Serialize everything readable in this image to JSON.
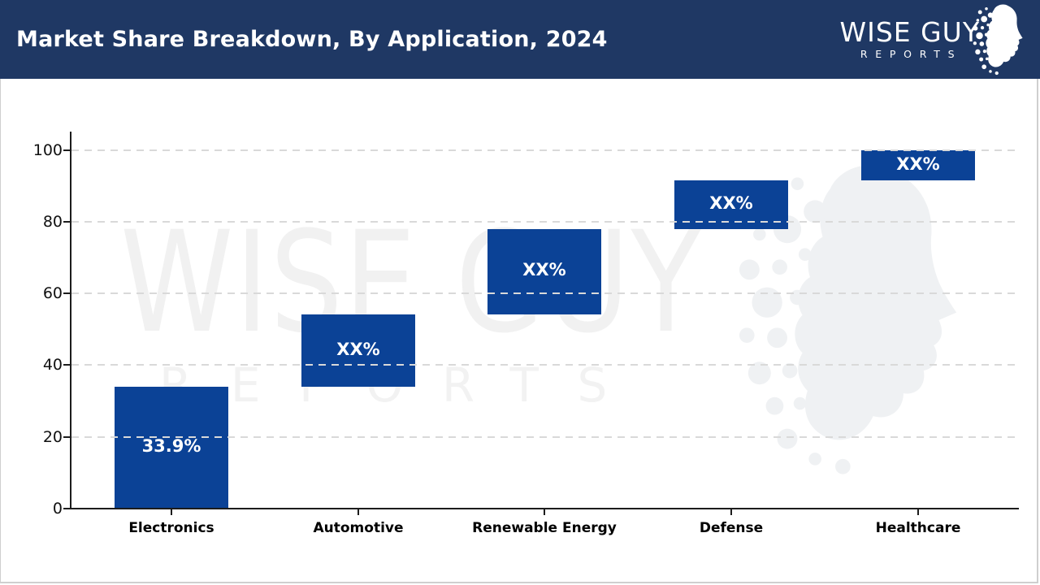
{
  "header": {
    "title": "Market Share Breakdown, By Application, 2024"
  },
  "brand": {
    "line1": "WISE GUY",
    "line2": "REPORTS"
  },
  "watermark": {
    "line1": "WISE GUY",
    "line2": "REPORTS"
  },
  "chart_data": {
    "type": "bar",
    "subtype": "floating-waterfall",
    "title": "Market Share Breakdown, By Application, 2024",
    "categories": [
      "Electronics",
      "Automotive",
      "Renewable Energy",
      "Defense",
      "Healthcare"
    ],
    "segments": [
      {
        "category": "Electronics",
        "start": 0,
        "end": 33.9,
        "label": "33.9%"
      },
      {
        "category": "Automotive",
        "start": 33.9,
        "end": 54.2,
        "label": "XX%"
      },
      {
        "category": "Renewable Energy",
        "start": 54.2,
        "end": 77.9,
        "label": "XX%"
      },
      {
        "category": "Defense",
        "start": 77.9,
        "end": 91.4,
        "label": "XX%"
      },
      {
        "category": "Healthcare",
        "start": 91.4,
        "end": 99.9,
        "label": "XX%"
      }
    ],
    "xlabel": "",
    "ylabel": "",
    "yticks": [
      0,
      20,
      40,
      60,
      80,
      100
    ],
    "ylim": [
      0,
      105
    ],
    "grid": "horizontal dashed",
    "legend": "none",
    "bar_color": "#0b4296",
    "bar_label_color": "#ffffff"
  },
  "colors": {
    "header_bg": "#1f3864",
    "header_text": "#ffffff",
    "bar": "#0b4296",
    "grid": "#d9d9d9",
    "axis": "#1c1c1c",
    "frame_border": "#cfcfcf",
    "watermark": "#f1f1f1"
  }
}
